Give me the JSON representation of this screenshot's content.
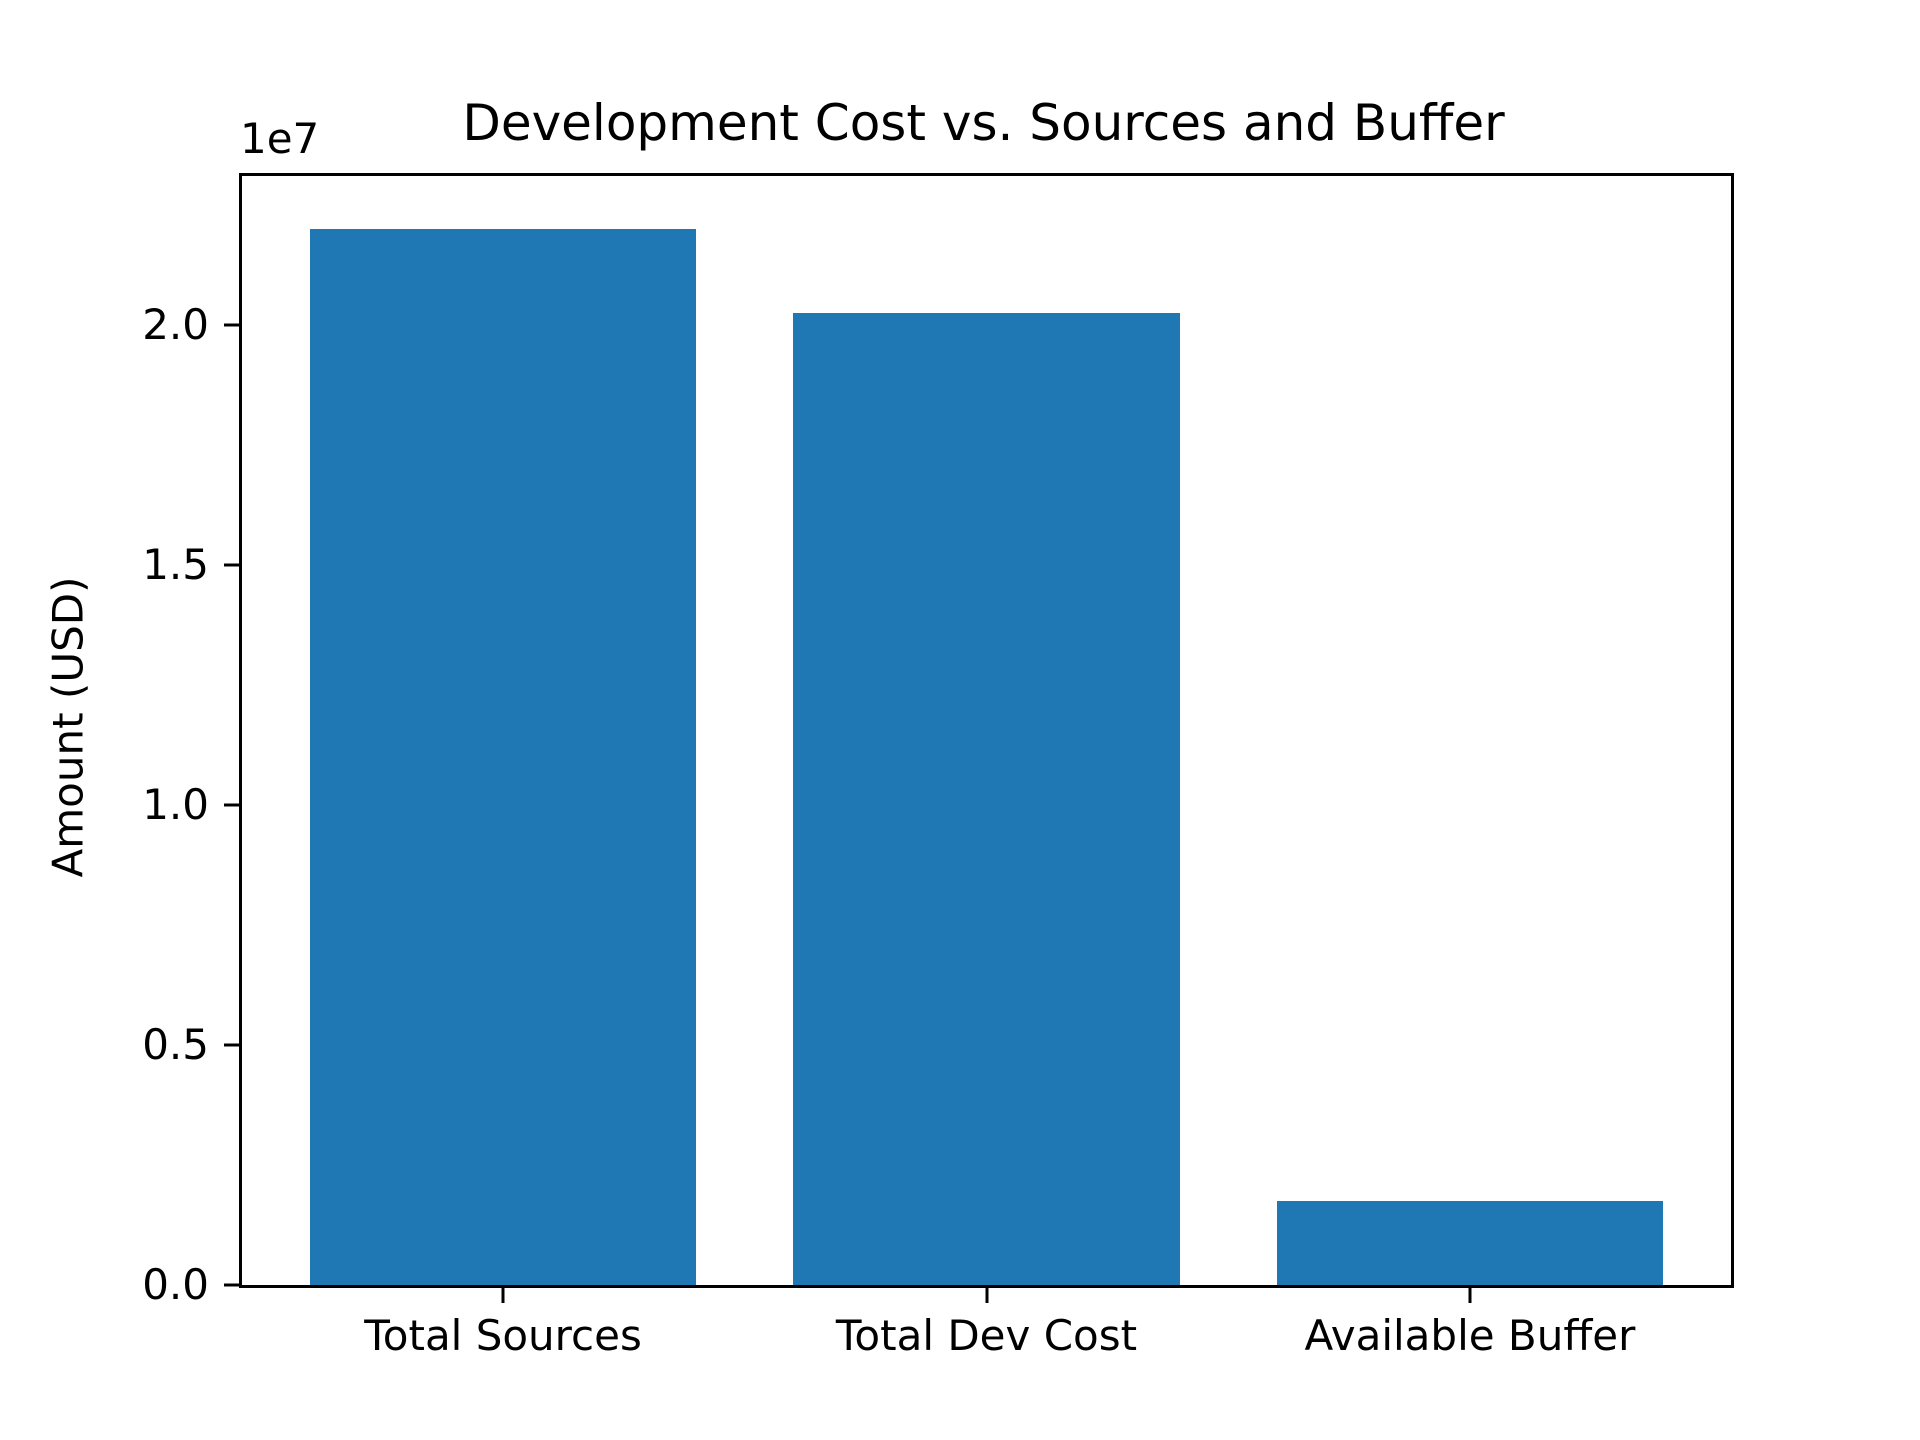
{
  "title": "Development Cost vs. Sources and Buffer",
  "chart_data": {
    "type": "bar",
    "title": "Development Cost vs. Sources and Buffer",
    "categories": [
      "Total Sources",
      "Total Dev Cost",
      "Available Buffer"
    ],
    "values": [
      22000000,
      20250000,
      1750000
    ],
    "xlabel": "",
    "ylabel": "Amount (USD)",
    "ylim": [
      0,
      23100000
    ],
    "yticks": [
      0,
      5000000,
      10000000,
      15000000,
      20000000
    ],
    "ytick_labels": [
      "0.0",
      "0.5",
      "1.0",
      "1.5",
      "2.0"
    ],
    "offset_text": "1e7",
    "bar_color": "#1f77b4",
    "grid": false,
    "legend": false
  }
}
